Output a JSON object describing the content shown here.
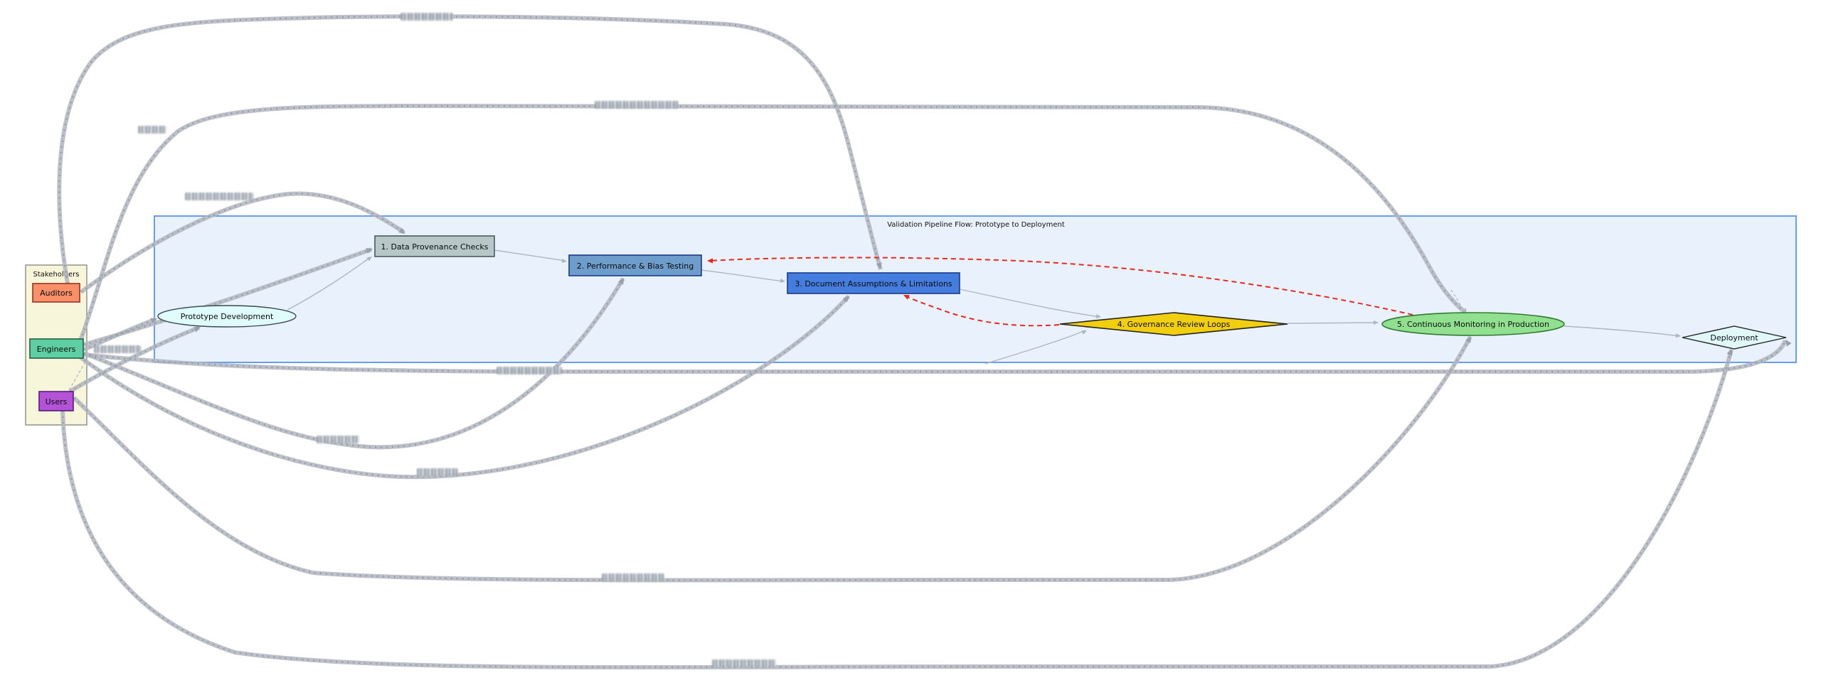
{
  "diagram": {
    "stakeholders": {
      "title": "Stakeholders",
      "fill": "#f7f6da",
      "border": "#8a8a8a",
      "items": [
        {
          "label": "Auditors",
          "fill": "#fa9068",
          "border": "#993322"
        },
        {
          "label": "Engineers",
          "fill": "#5ecfa2",
          "border": "#1f5f46"
        },
        {
          "label": "Users",
          "fill": "#b452d8",
          "border": "#5a1a7a"
        }
      ]
    },
    "pipeline": {
      "title": "Validation Pipeline Flow: Prototype to Deployment",
      "fill": "#e9f2fc",
      "border": "#6a9df0",
      "nodes": [
        {
          "id": "prototype",
          "label": "Prototype Development",
          "shape": "ellipse",
          "fill": "#dffbfb",
          "border": "#3c4a52"
        },
        {
          "id": "step1",
          "label": "1. Data Provenance Checks",
          "shape": "box",
          "fill": "#b7c6c6",
          "border": "#4a5a5a"
        },
        {
          "id": "step2",
          "label": "2. Performance & Bias Testing",
          "shape": "box",
          "fill": "#6e9ccb",
          "border": "#1a3a8a"
        },
        {
          "id": "step3",
          "label": "3. Document Assumptions & Limitations",
          "shape": "box",
          "fill": "#447ddd",
          "border": "#1a3a8a"
        },
        {
          "id": "step4",
          "label": "4. Governance Review Loops",
          "shape": "diamond",
          "fill": "#f2cf0e",
          "border": "#222222"
        },
        {
          "id": "step5",
          "label": "5. Continuous Monitoring in Production",
          "shape": "ellipse",
          "fill": "#90e090",
          "border": "#2f7a2f"
        },
        {
          "id": "deployment",
          "label": "Deployment",
          "shape": "diamond",
          "fill": "#e0f8f8",
          "border": "#222222"
        }
      ]
    },
    "edge_styles": {
      "feedback_color": "#e8281e",
      "flow_color": "#aeb6c0",
      "loop_color": "#b2b6bd"
    }
  }
}
